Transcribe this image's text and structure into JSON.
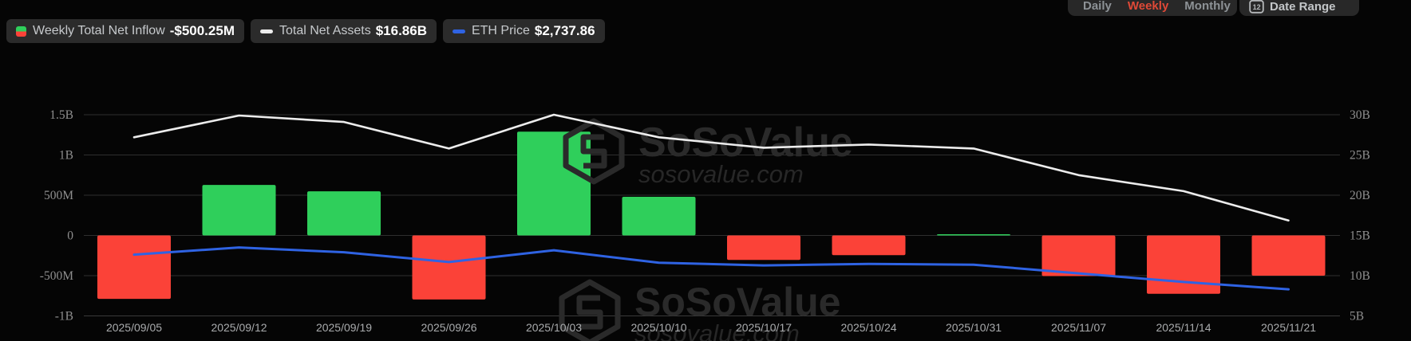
{
  "controls": {
    "period_tabs": [
      {
        "label": "Daily",
        "active": false
      },
      {
        "label": "Weekly",
        "active": true
      },
      {
        "label": "Monthly",
        "active": false
      }
    ],
    "active_tab_color": "#df4937",
    "date_range": {
      "label": "Date Range",
      "icon": "calendar-icon",
      "icon_day": "12"
    }
  },
  "legend": {
    "items": [
      {
        "icon": "inflow-bar-swatch",
        "label": "Weekly Total Net Inflow",
        "value": "-$500.25M",
        "colors": [
          "#2fcf5b",
          "#fb4238"
        ]
      },
      {
        "icon": "net-assets-line-swatch",
        "label": "Total Net Assets",
        "value": "$16.86B",
        "colors": [
          "#ececec"
        ]
      },
      {
        "icon": "eth-price-line-swatch",
        "label": "ETH Price",
        "value": "$2,737.86",
        "colors": [
          "#2f63e3"
        ]
      }
    ]
  },
  "watermark": {
    "brand": "SoSoValue",
    "domain": "sosovalue.com",
    "color": "#2a2a2a"
  },
  "chart_data": {
    "type": "mixed-bar-line",
    "categories": [
      "2025/09/05",
      "2025/09/12",
      "2025/09/19",
      "2025/09/26",
      "2025/10/03",
      "2025/10/10",
      "2025/10/17",
      "2025/10/24",
      "2025/10/31",
      "2025/11/07",
      "2025/11/14",
      "2025/11/21"
    ],
    "series": [
      {
        "name": "Weekly Total Net Inflow",
        "type": "bar",
        "axis": "left",
        "unit": "M USD",
        "values": [
          -788,
          628,
          548,
          -796,
          1290,
          480,
          -305,
          -245,
          15,
          -505,
          -725,
          -500.25
        ],
        "positive_color": "#2fcf5b",
        "negative_color": "#fb4238"
      },
      {
        "name": "Total Net Assets",
        "type": "line",
        "axis": "right",
        "unit": "B USD",
        "values": [
          27.2,
          29.9,
          29.1,
          25.8,
          30.0,
          27.2,
          25.9,
          26.3,
          25.8,
          22.5,
          20.5,
          16.86
        ],
        "color": "#ececec"
      },
      {
        "name": "ETH Price",
        "type": "line",
        "axis": "eth-hidden",
        "unit": "USD",
        "values": [
          4320,
          4650,
          4430,
          3985,
          4520,
          3950,
          3830,
          3895,
          3865,
          3465,
          3075,
          2737.86
        ],
        "color": "#2f63e3"
      }
    ],
    "left_axis": {
      "ticks": [
        "1.5B",
        "1B",
        "500M",
        "0",
        "-500M",
        "-1B"
      ],
      "min": -1000,
      "max": 1500,
      "unit": "M"
    },
    "right_axis": {
      "ticks": [
        "30B",
        "25B",
        "20B",
        "15B",
        "10B",
        "5B"
      ],
      "min": 5,
      "max": 30,
      "unit": "B"
    },
    "eth_axis": {
      "min": 1524,
      "max": 10710,
      "visible": false
    },
    "grid": true,
    "grid_color": "#2e2e2e",
    "axis_label_color": "#8f8f8f",
    "date_label_color": "#a9abad",
    "legend_position": "top-left"
  }
}
